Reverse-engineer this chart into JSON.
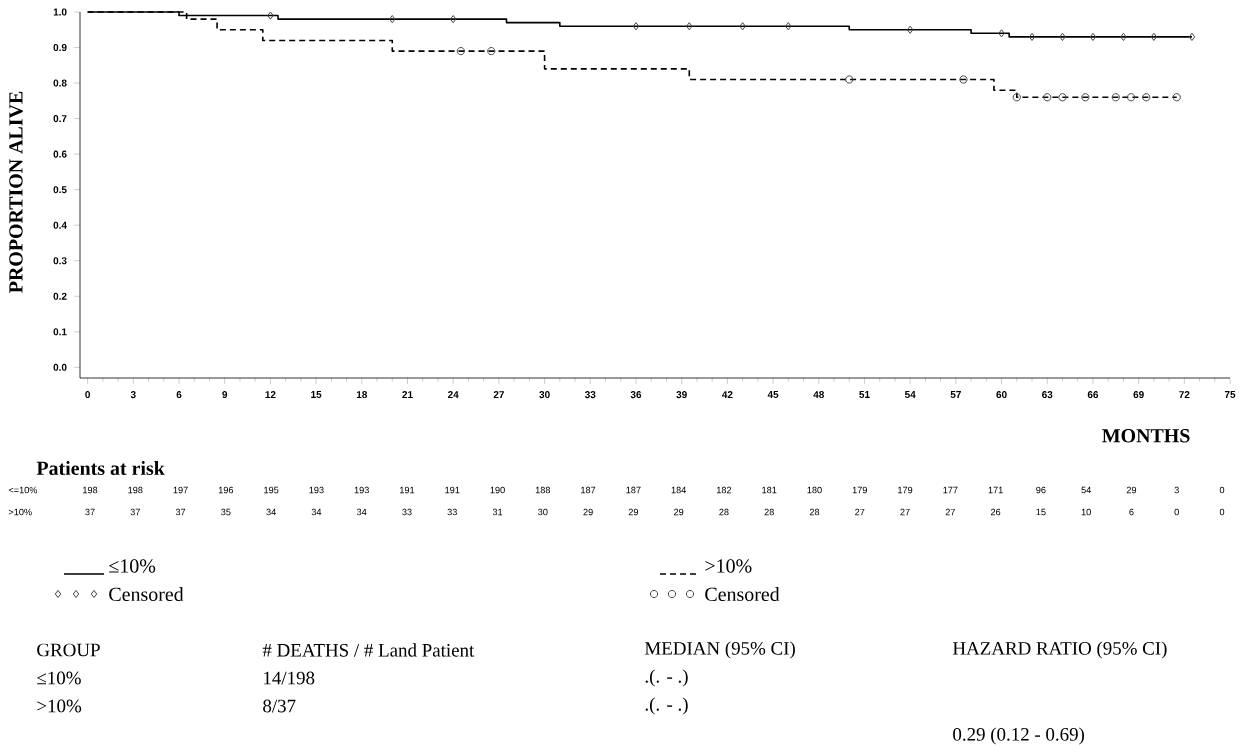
{
  "chart_data": {
    "type": "step",
    "xlabel": "MONTHS",
    "ylabel": "PROPORTION ALIVE",
    "xlim": [
      -0.5,
      75
    ],
    "ylim": [
      -0.03,
      1.0
    ],
    "xticks": [
      0,
      3,
      6,
      9,
      12,
      15,
      18,
      21,
      24,
      27,
      30,
      33,
      36,
      39,
      42,
      45,
      48,
      51,
      54,
      57,
      60,
      63,
      66,
      69,
      72,
      75
    ],
    "yticks": [
      {
        "value": 0,
        "label": "0.0"
      },
      {
        "value": 0.1,
        "label": "0.1"
      },
      {
        "value": 0.2,
        "label": "0.2"
      },
      {
        "value": 0.3,
        "label": "0.3"
      },
      {
        "value": 0.4,
        "label": "0.4"
      },
      {
        "value": 0.5,
        "label": "0.5"
      },
      {
        "value": 0.6,
        "label": "0.6"
      },
      {
        "value": 0.7,
        "label": "0.7"
      },
      {
        "value": 0.8,
        "label": "0.8"
      },
      {
        "value": 0.9,
        "label": "0.9"
      },
      {
        "value": 1.0,
        "label": "1.0"
      }
    ],
    "legend": "bottom",
    "series": [
      {
        "name": "≤10%",
        "color": "#000000",
        "line_style": "solid",
        "x": [
          0,
          6,
          12.5,
          27.5,
          31,
          50,
          58,
          60.5,
          72.5
        ],
        "values": [
          1,
          0.99,
          0.98,
          0.97,
          0.96,
          0.95,
          0.94,
          0.93,
          0.93
        ]
      },
      {
        "name": ">10%",
        "color": "#000000",
        "line_style": "dashed",
        "x": [
          0,
          6.5,
          8.5,
          11.5,
          20,
          30,
          39.5,
          59.5,
          61,
          71.5
        ],
        "values": [
          1,
          0.98,
          0.95,
          0.92,
          0.89,
          0.84,
          0.81,
          0.78,
          0.76,
          0.76
        ]
      },
      {
        "name": "Censored",
        "type": "scatter",
        "color": "#444444",
        "marker": "diamond",
        "x": [
          12,
          20,
          24,
          36,
          39.5,
          43,
          46,
          54,
          60,
          62,
          64,
          66,
          68,
          70,
          72.5
        ],
        "values": [
          0.99,
          0.98,
          0.98,
          0.96,
          0.96,
          0.96,
          0.96,
          0.95,
          0.94,
          0.93,
          0.93,
          0.93,
          0.93,
          0.93,
          0.93
        ]
      },
      {
        "name": "Censored",
        "type": "scatter",
        "color": "#444444",
        "marker": "circle",
        "x": [
          24.5,
          26.5,
          50,
          57.5,
          61,
          63,
          64,
          65.5,
          67.5,
          68.5,
          69.5,
          71.5
        ],
        "values": [
          0.89,
          0.89,
          0.81,
          0.81,
          0.76,
          0.76,
          0.76,
          0.76,
          0.76,
          0.76,
          0.76,
          0.76
        ]
      }
    ],
    "annotations": [
      "Patients at risk",
      "<=10%",
      "198",
      "198",
      "197",
      "196",
      "195",
      "193",
      "193",
      "191",
      "191",
      "190",
      "188",
      "187",
      "187",
      "184",
      "182",
      "181",
      "180",
      "179",
      "179",
      "177",
      "171",
      "96",
      "54",
      "29",
      "3",
      "0",
      ">10%",
      "37",
      "37",
      "37",
      "35",
      "34",
      "34",
      "34",
      "33",
      "33",
      "31",
      "30",
      "29",
      "29",
      "29",
      "28",
      "28",
      "28",
      "27",
      "27",
      "27",
      "26",
      "15",
      "10",
      "6",
      "0",
      "0",
      "GROUP",
      "# DEATHS / # Land Patient",
      "MEDIAN (95% CI)",
      "HAZARD RATIO (95% CI)",
      "≤10%",
      "14/198",
      ".(. - .)",
      ">10%",
      "8/37",
      ".(. - .)",
      "0.29 (0.12 - 0.69)"
    ]
  }
}
